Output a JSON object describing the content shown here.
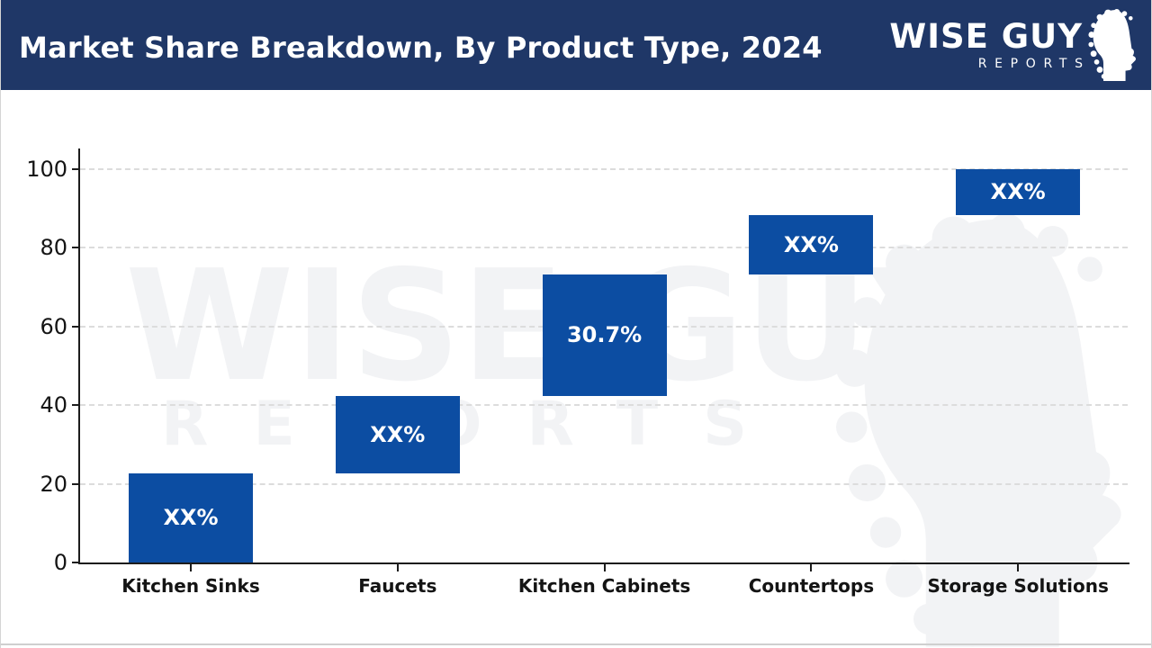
{
  "header": {
    "title": "Market Share Breakdown, By Product Type, 2024"
  },
  "logo": {
    "name_top": "WISE GUY",
    "name_bottom": "REPORTS"
  },
  "watermark": {
    "line1": "WISE GUY",
    "line2": "REPORTS"
  },
  "colors": {
    "header_bg": "#1f3767",
    "bar_fill": "#0c4da2",
    "bar_label_text": "#ffffff",
    "axis": "#1c1c1c",
    "gridline": "#dcdcdc",
    "watermark": "#f2f3f5",
    "title_text": "#ffffff",
    "tick_text": "#141414"
  },
  "chart_data": {
    "type": "bar",
    "variant": "waterfall",
    "title": "Market Share Breakdown, By Product Type, 2024",
    "categories": [
      "Kitchen Sinks",
      "Faucets",
      "Kitchen Cabinets",
      "Countertops",
      "Storage Solutions"
    ],
    "segments": [
      {
        "category": "Kitchen Sinks",
        "start": 0,
        "end": 22.7,
        "label": "XX%"
      },
      {
        "category": "Faucets",
        "start": 22.7,
        "end": 42.4,
        "label": "XX%"
      },
      {
        "category": "Kitchen Cabinets",
        "start": 42.4,
        "end": 73.1,
        "label": "30.7%"
      },
      {
        "category": "Countertops",
        "start": 73.1,
        "end": 88.3,
        "label": "XX%"
      },
      {
        "category": "Storage Solutions",
        "start": 88.3,
        "end": 100,
        "label": "XX%"
      }
    ],
    "xlabel": "",
    "ylabel": "",
    "ylim": [
      0,
      100
    ],
    "yticks": [
      0,
      20,
      40,
      60,
      80,
      100
    ],
    "grid": "horizontal dashed",
    "legend": "none"
  }
}
